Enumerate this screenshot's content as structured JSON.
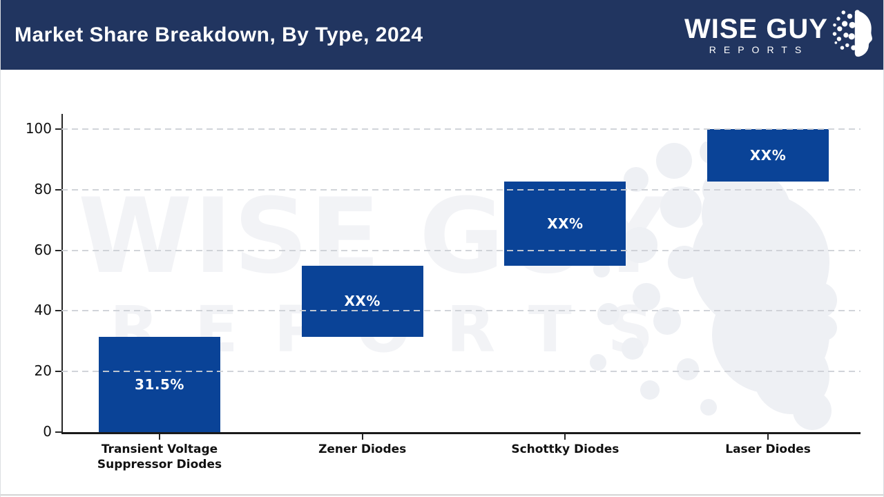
{
  "header": {
    "title": "Market Share Breakdown, By Type, 2024",
    "bg_color": "#213560",
    "logo": {
      "line1": "WISE GUY",
      "line2": "REPORTS"
    }
  },
  "watermark": {
    "line1": "WISE GUY",
    "line2": "REPORTS"
  },
  "chart_data": {
    "type": "bar",
    "variant": "waterfall",
    "categories": [
      "Transient Voltage Suppressor Diodes",
      "Zener Diodes",
      "Schottky Diodes",
      "Laser Diodes"
    ],
    "segments": [
      {
        "category": "Transient Voltage Suppressor Diodes",
        "label": "31.5%",
        "start": 0,
        "end": 31.5
      },
      {
        "category": "Zener Diodes",
        "label": "XX%",
        "start": 31.5,
        "end": 55
      },
      {
        "category": "Schottky Diodes",
        "label": "XX%",
        "start": 55,
        "end": 82.7
      },
      {
        "category": "Laser Diodes",
        "label": "XX%",
        "start": 82.7,
        "end": 100
      }
    ],
    "y_ticks": [
      0,
      20,
      40,
      60,
      80,
      100
    ],
    "ylim": [
      0,
      100
    ],
    "grid": {
      "orientation": "horizontal",
      "style": "dashed",
      "color": "#d9d9d9"
    },
    "bar_color": "#0a4397",
    "bar_label_color": "#ffffff",
    "legend": "none"
  }
}
